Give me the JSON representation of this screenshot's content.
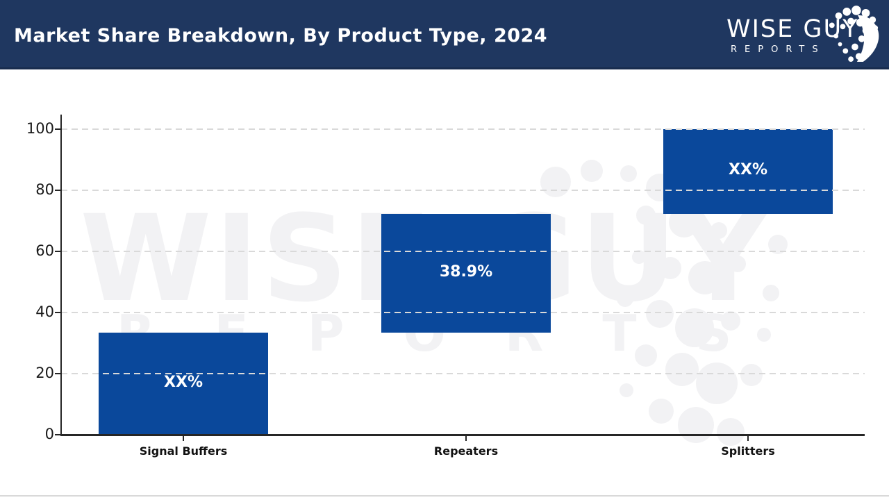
{
  "header": {
    "title": "Market Share Breakdown, By Product Type, 2024",
    "bg_color": "#1f3760",
    "logo": {
      "line1": "WISE GUY",
      "line2": "REPORTS"
    }
  },
  "watermark": {
    "line1": "WISE GUY",
    "line2": "R E P O R T S"
  },
  "chart_data": {
    "type": "bar",
    "subtype": "waterfall",
    "title": "Market Share Breakdown, By Product Type, 2024",
    "categories": [
      "Signal Buffers",
      "Repeaters",
      "Splitters"
    ],
    "segments": [
      {
        "category": "Signal Buffers",
        "start": 0,
        "end": 33.3,
        "label": "XX%"
      },
      {
        "category": "Repeaters",
        "start": 33.3,
        "end": 72.2,
        "label": "38.9%"
      },
      {
        "category": "Splitters",
        "start": 72.2,
        "end": 100,
        "label": "XX%"
      }
    ],
    "xlabel": "",
    "ylabel": "",
    "ylim": [
      0,
      100
    ],
    "yticks": [
      0,
      20,
      40,
      60,
      80,
      100
    ],
    "grid": "horizontal-dashed",
    "legend": "none",
    "bar_color": "#0a489b",
    "bar_label_color": "#ffffff",
    "axis_color": "#262626",
    "gridline_color": "#d9d9d9"
  }
}
